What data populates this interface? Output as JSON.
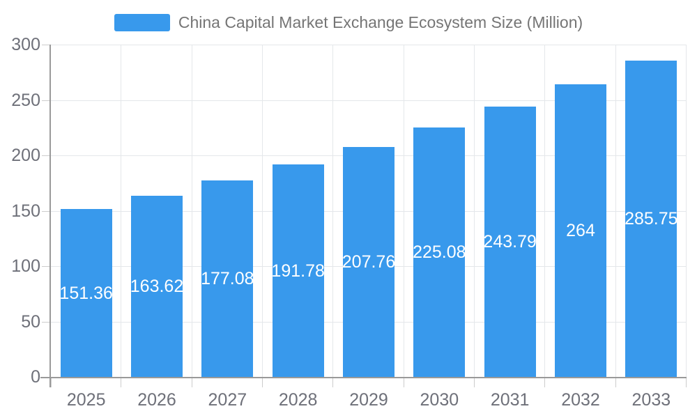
{
  "chart_data": {
    "type": "bar",
    "title": "China Capital Market Exchange Ecosystem Size (Million)",
    "categories": [
      "2025",
      "2026",
      "2027",
      "2028",
      "2029",
      "2030",
      "2031",
      "2032",
      "2033"
    ],
    "values": [
      151.36,
      163.62,
      177.08,
      191.78,
      207.76,
      225.08,
      243.79,
      264,
      285.75
    ],
    "value_labels": [
      "151.36",
      "163.62",
      "177.08",
      "191.78",
      "207.76",
      "225.08",
      "243.79",
      "264",
      "285.75"
    ],
    "xlabel": "",
    "ylabel": "",
    "ylim": [
      0,
      300
    ],
    "y_tick_step": 50,
    "y_tick_labels": [
      "0",
      "50",
      "100",
      "150",
      "200",
      "250",
      "300"
    ],
    "grid": true,
    "legend_position": "top-center",
    "value_label_position": "inside-center",
    "colors": {
      "bar": "#3899EC",
      "value_label": "#FFFFFF",
      "axis_label": "#6E7079",
      "title": "#757575",
      "axis_line": "#999999",
      "grid_line": "#E4E7EA",
      "tick": "#CCCCCC"
    }
  }
}
